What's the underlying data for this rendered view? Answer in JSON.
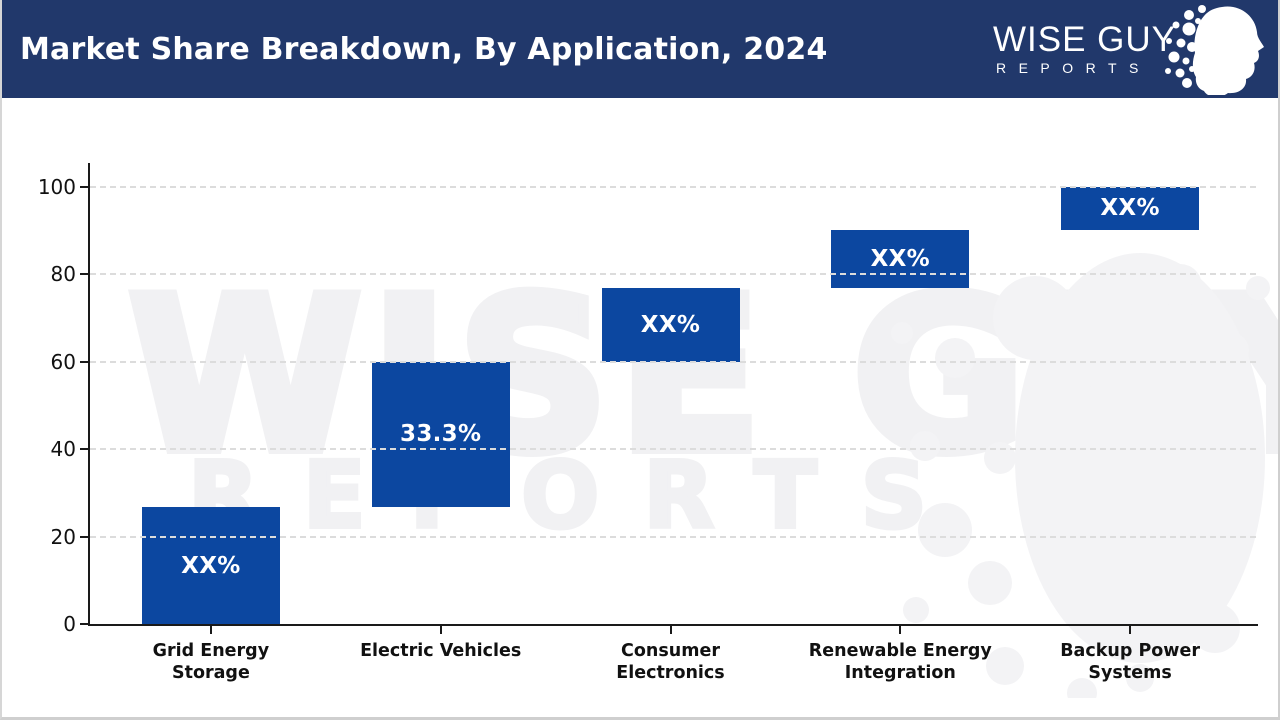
{
  "header": {
    "title": "Market Share Breakdown, By Application, 2024",
    "logo": {
      "main": "WISE GUY",
      "sub": "REPORTS"
    }
  },
  "watermark": {
    "wordmark": "WISE GUY",
    "reports": "REPORTS"
  },
  "chart_data": {
    "type": "bar",
    "subtype": "floating-waterfall",
    "title": "Market Share Breakdown, By Application, 2024",
    "categories": [
      "Grid Energy\nStorage",
      "Electric Vehicles",
      "Consumer\nElectronics",
      "Renewable Energy\nIntegration",
      "Backup Power\nSystems"
    ],
    "bars": [
      {
        "category": "Grid Energy Storage",
        "start": 0,
        "end": 26.7,
        "label": "XX%"
      },
      {
        "category": "Electric Vehicles",
        "start": 26.7,
        "end": 60,
        "label": "33.3%"
      },
      {
        "category": "Consumer Electronics",
        "start": 60,
        "end": 76.7,
        "label": "XX%"
      },
      {
        "category": "Renewable Energy Integration",
        "start": 76.7,
        "end": 90,
        "label": "XX%"
      },
      {
        "category": "Backup Power Systems",
        "start": 90,
        "end": 100,
        "label": "XX%"
      }
    ],
    "yticks": [
      0,
      20,
      40,
      60,
      80,
      100
    ],
    "ylim": [
      0,
      110
    ],
    "xlabel": "",
    "ylabel": "",
    "grid": "dashed-horizontal",
    "legend": "none",
    "bar_color": "#0C47A0",
    "bar_label_color": "#ffffff"
  },
  "colors": {
    "header_bg": "#21386B",
    "bar": "#0C47A0",
    "watermark": "#f1f1f3",
    "axis": "#1a1a1a",
    "grid": "#dcdcdc",
    "frame_border": "#cfcfcf"
  }
}
